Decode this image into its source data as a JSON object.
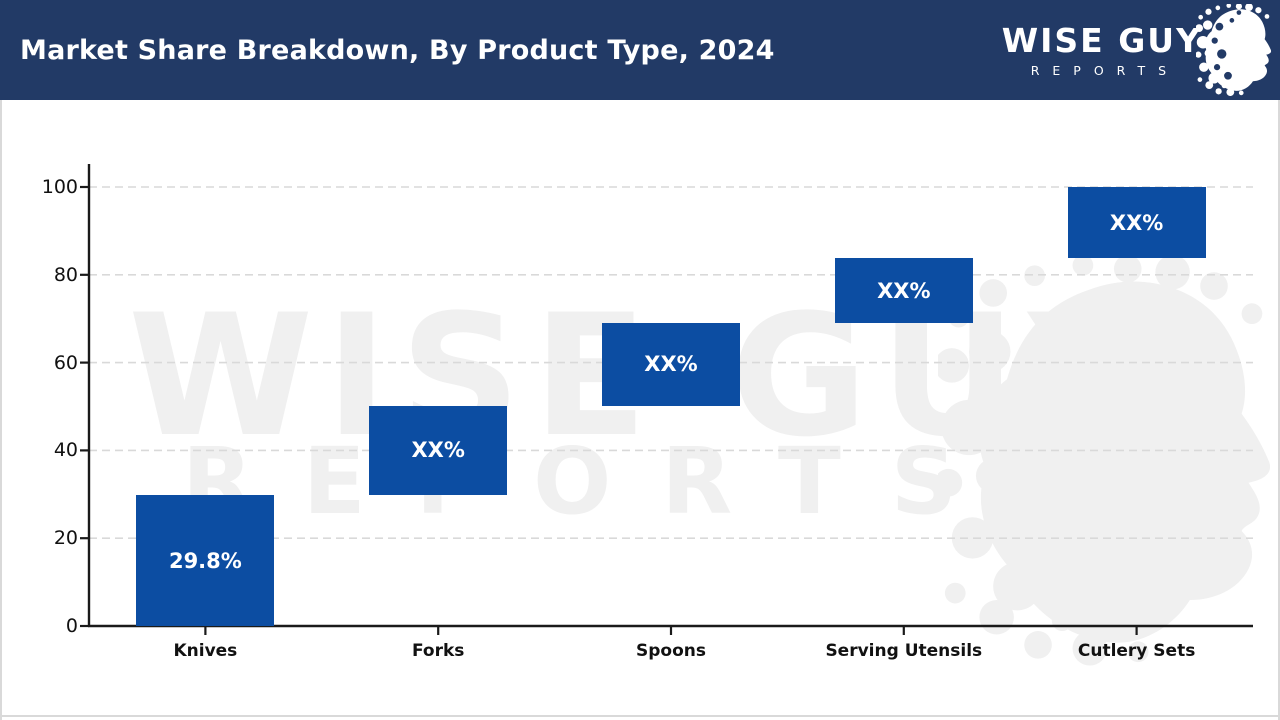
{
  "header": {
    "title": "Market Share Breakdown, By Product Type, 2024",
    "logo": {
      "line1": "WISE GUY",
      "line2": "REPORTS"
    }
  },
  "watermark": {
    "line1": "WISE GUY",
    "line2": "REPORTS"
  },
  "chart_data": {
    "type": "bar",
    "subtype": "waterfall-floating-bars",
    "title": "Market Share Breakdown, By Product Type, 2024",
    "categories": [
      "Knives",
      "Forks",
      "Spoons",
      "Serving Utensils",
      "Cutlery Sets"
    ],
    "segments": [
      {
        "category": "Knives",
        "start": 0,
        "end": 29.8,
        "label": "29.8%"
      },
      {
        "category": "Forks",
        "start": 29.8,
        "end": 50.2,
        "label": "XX%"
      },
      {
        "category": "Spoons",
        "start": 50.2,
        "end": 69.0,
        "label": "XX%"
      },
      {
        "category": "Serving Utensils",
        "start": 69.0,
        "end": 83.8,
        "label": "XX%"
      },
      {
        "category": "Cutlery Sets",
        "start": 83.8,
        "end": 100.0,
        "label": "XX%"
      }
    ],
    "y_ticks": [
      "0",
      "20",
      "40",
      "60",
      "80",
      "100"
    ],
    "ylim": [
      0,
      100
    ],
    "xlabel": "",
    "ylabel": "",
    "grid": "horizontal dashed",
    "legend": "none"
  },
  "colors": {
    "header_bg": "#223a66",
    "header_text": "#ffffff",
    "bar": "#0c4da2",
    "bar_label": "#ffffff",
    "axis": "#1a1a1a",
    "grid": "#d9d9d9",
    "watermark": "#f0f0f0",
    "tick_label": "#111111"
  }
}
